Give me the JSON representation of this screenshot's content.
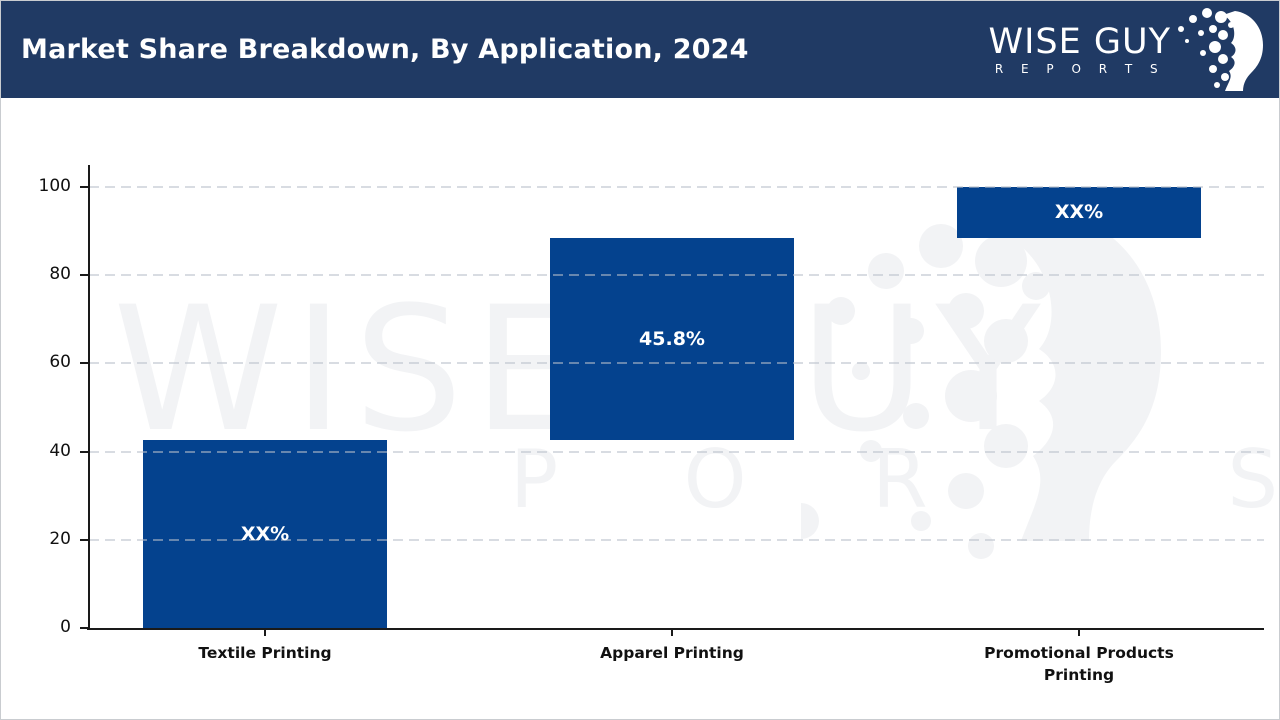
{
  "header": {
    "title": "Market Share Breakdown, By Application, 2024",
    "logo": {
      "line1": "WISE GUY",
      "line2": "R E P O R T S",
      "icon": "dotted-head-profile"
    }
  },
  "colors": {
    "header_bg": "#203a64",
    "bar_blue": "#04428e",
    "gridline": "#d9dde2",
    "axis": "#1a1a1a",
    "watermark": "#f2f3f5",
    "value_label_text": "#ffffff"
  },
  "watermark": {
    "line1": "WISE GUY",
    "line2": "R E P O R T S"
  },
  "chart_data": {
    "type": "bar",
    "variant": "segmented-waterfall",
    "title": "Market Share Breakdown, By Application, 2024",
    "xlabel": "",
    "ylabel": "",
    "categories": [
      "Textile Printing",
      "Apparel Printing",
      "Promotional Products Printing"
    ],
    "segments": [
      {
        "category": "Textile Printing",
        "start": 0,
        "end": 42.7,
        "value": 42.7,
        "label": "XX%"
      },
      {
        "category": "Apparel Printing",
        "start": 42.7,
        "end": 88.5,
        "value": 45.8,
        "label": "45.8%"
      },
      {
        "category": "Promotional Products Printing",
        "start": 88.5,
        "end": 100,
        "value": 11.5,
        "label": "XX%"
      }
    ],
    "yticks": [
      0,
      20,
      40,
      60,
      80,
      100
    ],
    "ylim": [
      0,
      105
    ],
    "grid": "horizontal dashed, drawn over bars",
    "legend": "none",
    "bar_color": "#04428e"
  }
}
